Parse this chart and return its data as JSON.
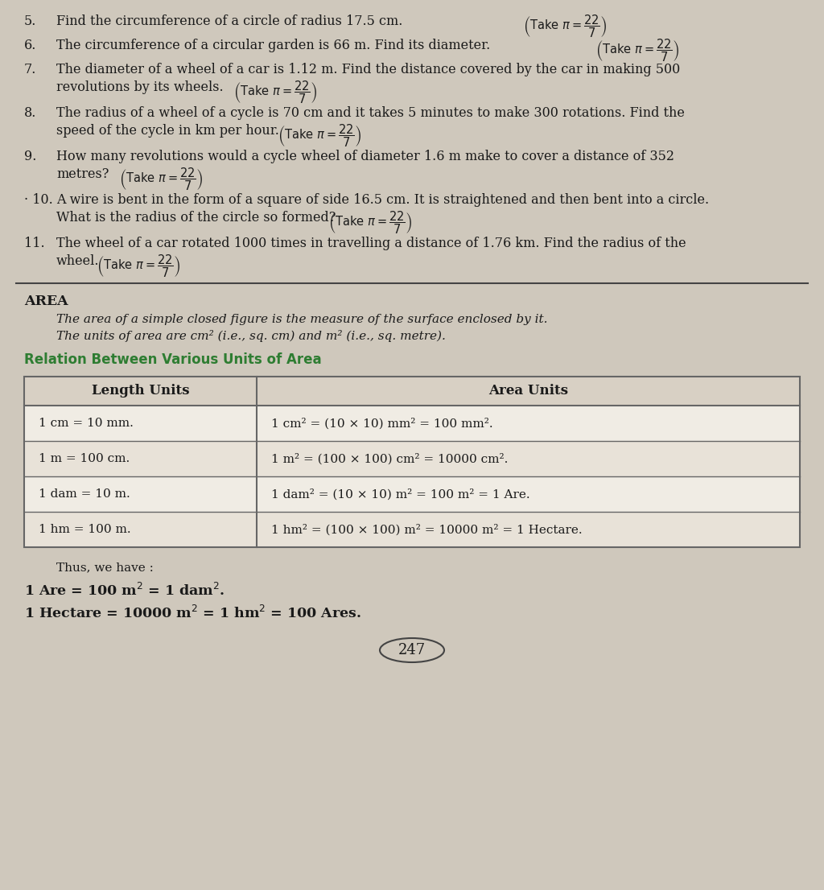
{
  "page_bg": "#cfc8bc",
  "text_color": "#1a1a1a",
  "questions": [
    {
      "num": "5.",
      "lines": [
        "Find the circumference of a circle of radius 17.5 cm."
      ],
      "take_line": 0,
      "take_inline": false
    },
    {
      "num": "6.",
      "lines": [
        "The circumference of a circular garden is 66 m. Find its diameter."
      ],
      "take_line": 0,
      "take_inline": false
    },
    {
      "num": "7.",
      "lines": [
        "The diameter of a wheel of a car is 1.12 m. Find the distance covered by the car in making 500",
        "revolutions by its wheels."
      ],
      "take_line": 1,
      "take_inline": true
    },
    {
      "num": "8.",
      "lines": [
        "The radius of a wheel of a cycle is 70 cm and it takes 5 minutes to make 300 rotations. Find the",
        "speed of the cycle in km per hour."
      ],
      "take_line": 1,
      "take_inline": true
    },
    {
      "num": "9.",
      "lines": [
        "How many revolutions would a cycle wheel of diameter 1.6 m make to cover a distance of 352",
        "metres?"
      ],
      "take_line": 1,
      "take_inline": true
    },
    {
      "num": "10.",
      "lines": [
        "A wire is bent in the form of a square of side 16.5 cm. It is straightened and then bent into a circle.",
        "What is the radius of the circle so formed?"
      ],
      "take_line": 1,
      "take_inline": true,
      "bullet": true
    },
    {
      "num": "11.",
      "lines": [
        "The wheel of a car rotated 1000 times in travelling a distance of 1.76 km. Find the radius of the",
        "wheel."
      ],
      "take_line": 1,
      "take_inline": true
    }
  ],
  "area_heading": "AREA",
  "area_italic1": "The area of a simple closed figure is the measure of the surface enclosed by it.",
  "area_italic2": "The units of area are cm² (i.e., sq. cm) and m² (i.e., sq. metre).",
  "relation_heading": "Relation Between Various Units of Area",
  "table_header": [
    "Length Units",
    "Area Units"
  ],
  "table_rows": [
    [
      "1 cm = 10 mm.",
      "1 cm² = (10 × 10) mm² = 100 mm²."
    ],
    [
      "1 m = 100 cm.",
      "1 m² = (100 × 100) cm² = 10000 cm²."
    ],
    [
      "1 dam = 10 m.",
      "1 dam² = (10 × 10) m² = 100 m² = 1 Are."
    ],
    [
      "1 hm = 100 m.",
      "1 hm² = (100 × 100) m² = 10000 m² = 1 Hectare."
    ]
  ],
  "thus_text": "Thus, we have :",
  "formula1": "1 Are = 100 m",
  "formula1_sup": "2",
  "formula1_end": " = 1 dam",
  "formula1_sup2": "2",
  "formula1_final": ".",
  "formula2": "1 Hectare = 10000 m",
  "formula2_sup": "2",
  "formula2_end": " = 1 hm",
  "formula2_sup2": "2",
  "formula2_mid": " = 100 Ares.",
  "page_num": "247",
  "table_header_bg": "#d8d0c4",
  "table_row_bg": "#e8e2d8",
  "table_border_color": "#666666",
  "relation_heading_color": "#2e7d32",
  "divider_color": "#444444"
}
